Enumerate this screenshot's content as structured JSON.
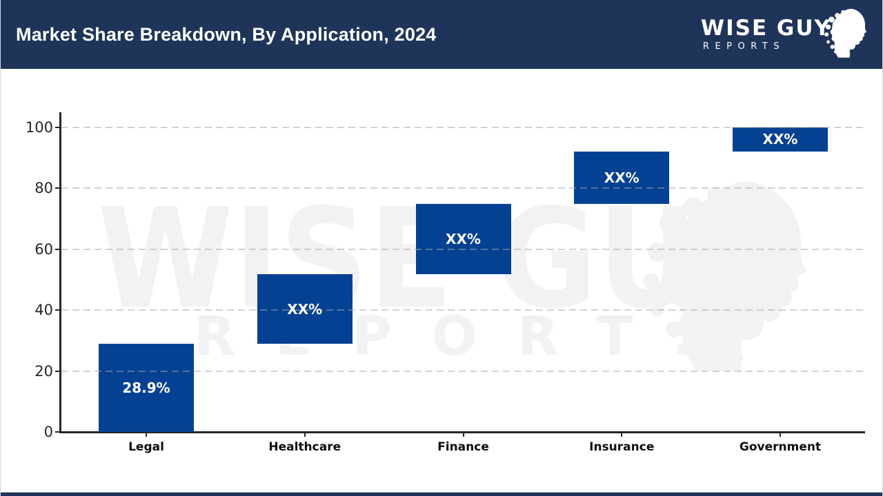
{
  "header": {
    "title": "Market Share Breakdown, By Application, 2024",
    "brand": {
      "line1": "WISE GUY",
      "line2": "REPORTS"
    },
    "bg_color": "#1f3459"
  },
  "watermark": {
    "line1": "WISE GUY",
    "line2": "REPORTS"
  },
  "footer": {
    "bar_color": "#1f3459"
  },
  "chart_data": {
    "type": "bar",
    "variant": "waterfall",
    "title": "Market Share Breakdown, By Application, 2024",
    "categories": [
      "Legal",
      "Healthcare",
      "Finance",
      "Insurance",
      "Government"
    ],
    "series": [
      {
        "name": "Market share by application (%)",
        "segments": [
          {
            "category": "Legal",
            "start": 0,
            "end": 28.9,
            "label": "28.9%"
          },
          {
            "category": "Healthcare",
            "start": 28.9,
            "end": 51.7,
            "label": "XX%"
          },
          {
            "category": "Finance",
            "start": 51.7,
            "end": 74.8,
            "label": "XX%"
          },
          {
            "category": "Insurance",
            "start": 74.8,
            "end": 92.1,
            "label": "XX%"
          },
          {
            "category": "Government",
            "start": 92.1,
            "end": 100,
            "label": "XX%"
          }
        ]
      }
    ],
    "y_ticks": [
      0,
      20,
      40,
      60,
      80,
      100
    ],
    "ylim": [
      0,
      104.5
    ],
    "xlabel": "",
    "ylabel": "",
    "grid": "horizontal dashed, drawn over bars",
    "legend": "none",
    "bar_color": "#054193",
    "bar_label_color": "#ffffff",
    "axis_color": "#262626",
    "watermark_color": "#f2f2f4"
  }
}
